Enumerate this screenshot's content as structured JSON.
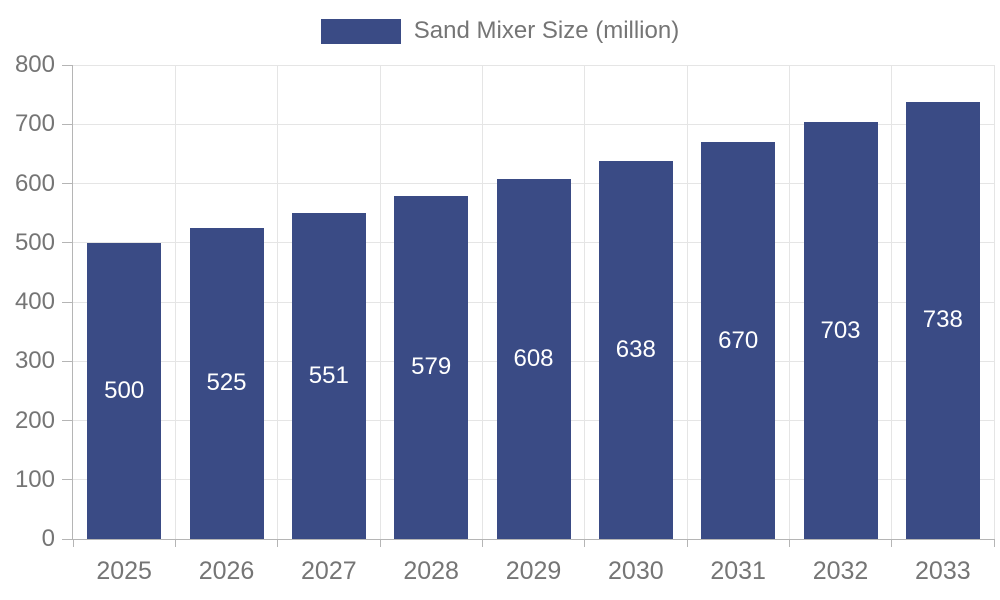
{
  "legend": {
    "label": "Sand Mixer Size (million)"
  },
  "chart_data": {
    "type": "bar",
    "title": "Sand Mixer Size (million)",
    "categories": [
      "2025",
      "2026",
      "2027",
      "2028",
      "2029",
      "2030",
      "2031",
      "2032",
      "2033"
    ],
    "values": [
      500,
      525,
      551,
      579,
      608,
      638,
      670,
      703,
      738
    ],
    "xlabel": "",
    "ylabel": "",
    "ylim": [
      0,
      800
    ],
    "yticks": [
      0,
      100,
      200,
      300,
      400,
      500,
      600,
      700,
      800
    ],
    "grid": true,
    "legend_position": "top",
    "bar_labels_visible": true
  },
  "colors": {
    "bar": "#3A4B85",
    "grid": "#e5e5e5",
    "axis": "#b5b5b5",
    "tick_label": "#757575",
    "value_label": "#ffffff",
    "background": "#ffffff"
  }
}
